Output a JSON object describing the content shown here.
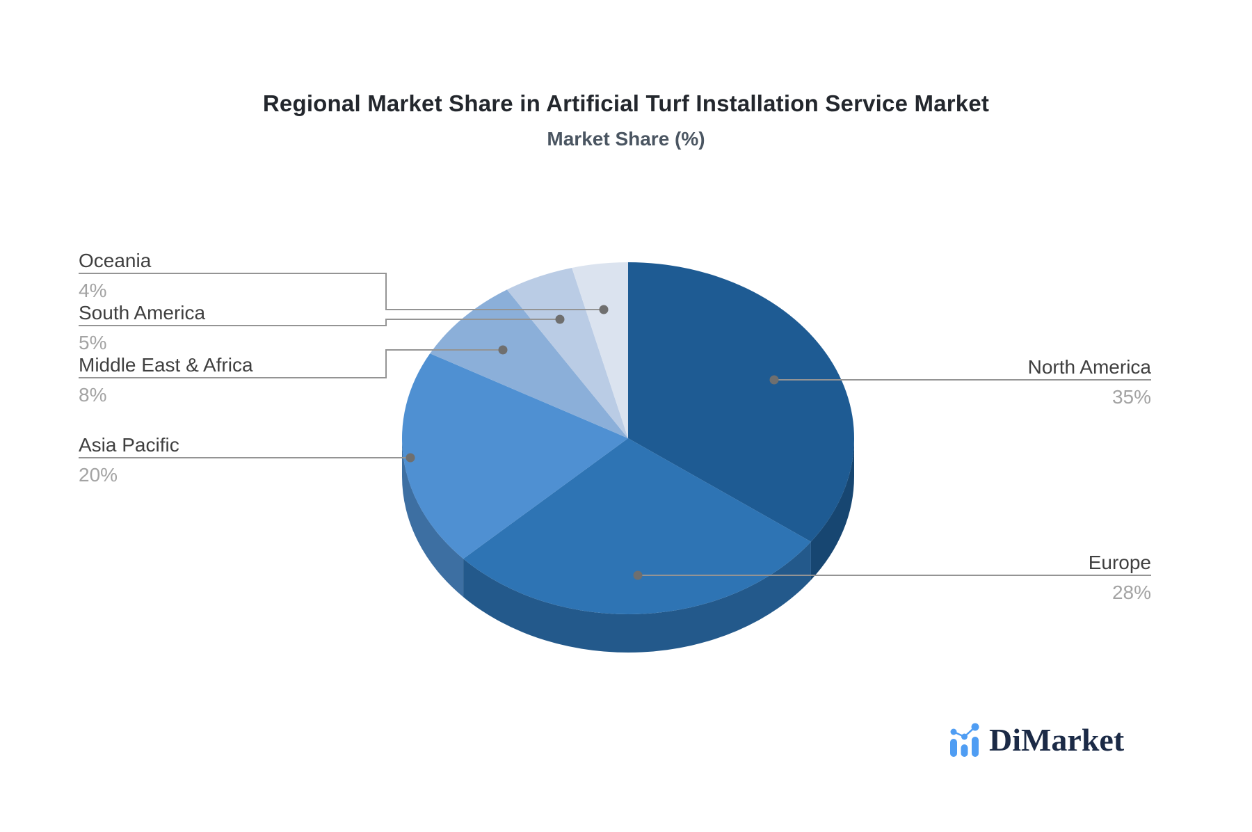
{
  "header": {
    "title": "Regional Market Share in Artificial Turf Installation Service Market",
    "subtitle": "Market Share (%)"
  },
  "chart_data": {
    "type": "pie",
    "style": "3d",
    "title": "Regional Market Share in Artificial Turf Installation Service Market",
    "subtitle": "Market Share (%)",
    "unit": "%",
    "start_angle_deg": 0,
    "direction": "clockwise",
    "legend_position": "none",
    "slices": [
      {
        "name": "North America",
        "value": 35,
        "label": "35%",
        "color": "#1E5B93",
        "label_side": "right"
      },
      {
        "name": "Europe",
        "value": 28,
        "label": "28%",
        "color": "#2E74B4",
        "label_side": "right"
      },
      {
        "name": "Asia Pacific",
        "value": 20,
        "label": "20%",
        "color": "#4F90D2",
        "label_side": "left"
      },
      {
        "name": "Middle East & Africa",
        "value": 8,
        "label": "8%",
        "color": "#8BAFD9",
        "label_side": "left"
      },
      {
        "name": "South America",
        "value": 5,
        "label": "5%",
        "color": "#BACCE5",
        "label_side": "left"
      },
      {
        "name": "Oceania",
        "value": 4,
        "label": "4%",
        "color": "#DBE3EF",
        "label_side": "left"
      }
    ],
    "leader_line_color": "#949494",
    "leader_dot_color": "#6f6f6f",
    "label_color": "#3f3f3f",
    "value_color": "#a3a3a3"
  },
  "logo": {
    "text": "DiMarket",
    "icon": "bar-line-chart-icon",
    "text_color": "#1b2a46",
    "icon_color": "#4f9df3"
  }
}
